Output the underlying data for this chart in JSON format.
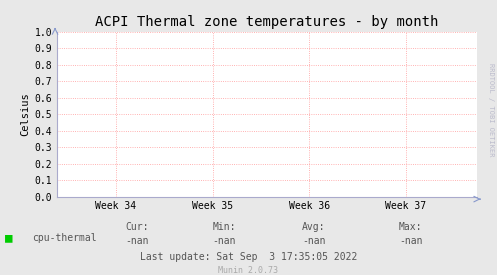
{
  "title": "ACPI Thermal zone temperatures - by month",
  "ylabel": "Celsius",
  "xlabels": [
    "Week 34",
    "Week 35",
    "Week 36",
    "Week 37"
  ],
  "ylim": [
    0.0,
    1.0
  ],
  "yticks": [
    0.0,
    0.1,
    0.2,
    0.3,
    0.4,
    0.5,
    0.6,
    0.7,
    0.8,
    0.9,
    1.0
  ],
  "bg_color": "#e8e8e8",
  "plot_bg_color": "#ffffff",
  "grid_color": "#ff9999",
  "legend_label": "cpu-thermal",
  "legend_color": "#00cc00",
  "cur_label": "Cur:",
  "min_label": "Min:",
  "avg_label": "Avg:",
  "max_label": "Max:",
  "cur_val": "-nan",
  "min_val": "-nan",
  "avg_val": "-nan",
  "max_val": "-nan",
  "last_update": "Last update: Sat Sep  3 17:35:05 2022",
  "munin_version": "Munin 2.0.73",
  "watermark": "RRDTOOL / TOBI OETIKER",
  "title_fontsize": 10,
  "axis_label_fontsize": 7.5,
  "tick_fontsize": 7,
  "info_fontsize": 7,
  "munin_fontsize": 6,
  "watermark_fontsize": 5
}
